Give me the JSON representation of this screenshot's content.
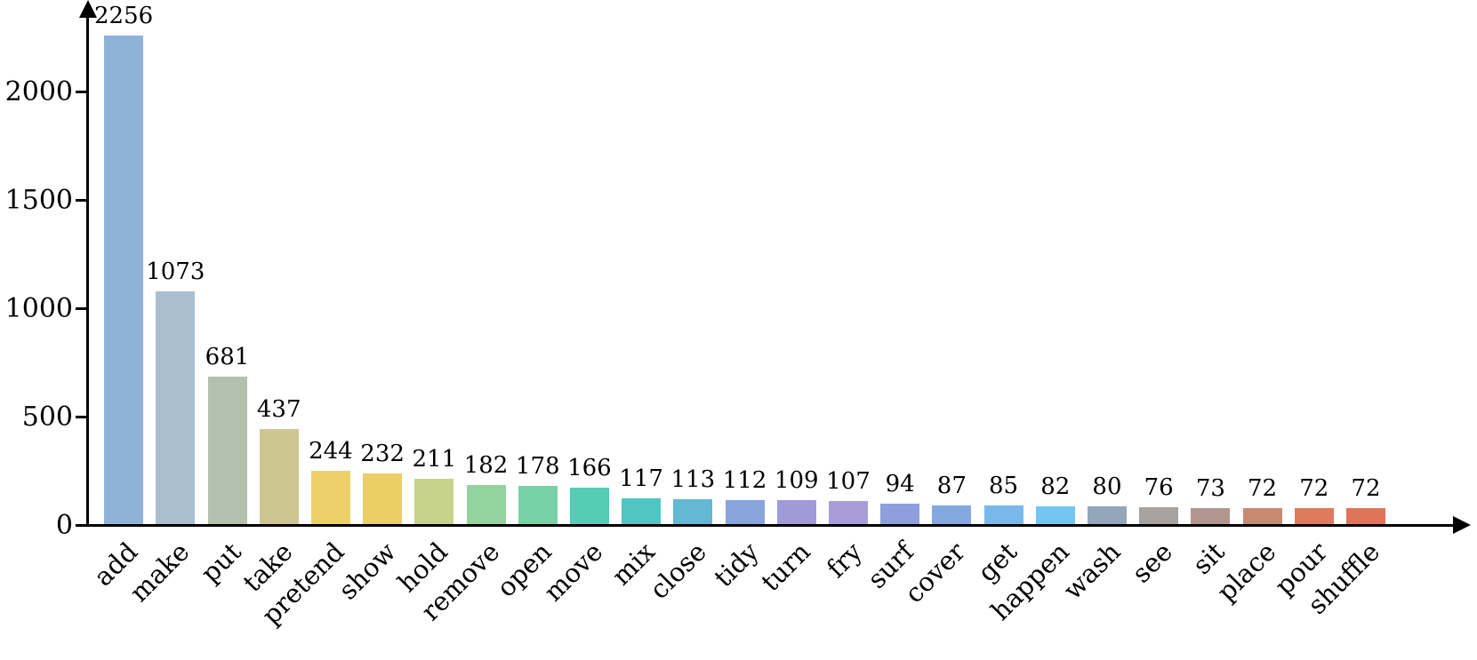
{
  "chart_data": {
    "type": "bar",
    "title": "",
    "xlabel": "",
    "ylabel": "",
    "categories": [
      "add",
      "make",
      "put",
      "take",
      "pretend",
      "show",
      "hold",
      "remove",
      "open",
      "move",
      "mix",
      "close",
      "tidy",
      "turn",
      "fry",
      "surf",
      "cover",
      "get",
      "happen",
      "wash",
      "see",
      "sit",
      "place",
      "pour",
      "shuffle"
    ],
    "values": [
      2256,
      1073,
      681,
      437,
      244,
      232,
      211,
      182,
      178,
      166,
      117,
      113,
      112,
      109,
      107,
      94,
      87,
      85,
      82,
      80,
      76,
      73,
      72,
      72,
      72
    ],
    "bar_colors": [
      "#8fb2d9",
      "#a9bfcf",
      "#b3c0ad",
      "#cdc693",
      "#edd069",
      "#ebce64",
      "#c7d38a",
      "#94d29e",
      "#76d2a6",
      "#55cdb4",
      "#50c6c2",
      "#63b8d2",
      "#89a4db",
      "#a29ad8",
      "#a89dd9",
      "#8f9edd",
      "#84a9e0",
      "#79b9ea",
      "#72c6ef",
      "#93a6ba",
      "#a6a3a1",
      "#b29791",
      "#c98a74",
      "#de7b5f",
      "#e0745b"
    ],
    "yticks": [
      0,
      500,
      1000,
      1500,
      2000
    ],
    "ylim": [
      0,
      2420
    ],
    "grid": false,
    "legend": "none",
    "axis_color": "#000000",
    "background_color": "#ffffff",
    "value_labels_shown": true
  }
}
